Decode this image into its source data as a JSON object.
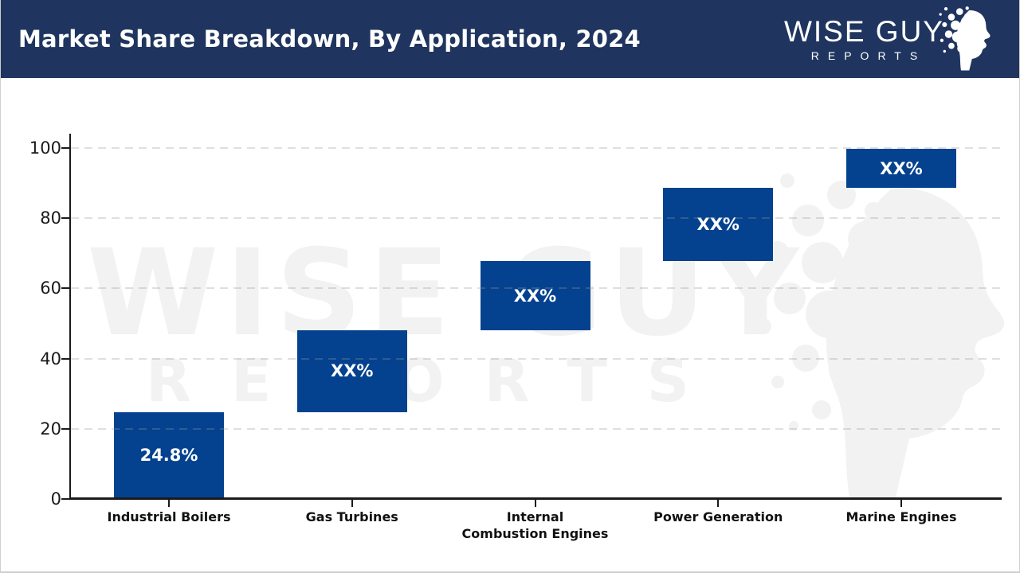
{
  "header": {
    "title": "Market Share Breakdown, By Application, 2024",
    "logo": {
      "name": "Wise Guy Reports",
      "line1": "WISE GUY",
      "line2": "REPORTS"
    }
  },
  "watermark": {
    "line1": "WISE GUY",
    "line2": "REPORTS"
  },
  "chart_data": {
    "type": "bar",
    "variant": "floating-waterfall",
    "title": "Market Share Breakdown, By Application, 2024",
    "categories": [
      "Industrial Boilers",
      "Gas Turbines",
      "Internal\nCombustion Engines",
      "Power Generation",
      "Marine Engines"
    ],
    "bars": [
      {
        "category": "Industrial Boilers",
        "start": 0,
        "end": 24.8,
        "label": "24.8%"
      },
      {
        "category": "Gas Turbines",
        "start": 24.8,
        "end": 48,
        "label": "XX%"
      },
      {
        "category": "Internal Combustion Engines",
        "start": 48,
        "end": 67.8,
        "label": "XX%"
      },
      {
        "category": "Power Generation",
        "start": 67.8,
        "end": 88.6,
        "label": "XX%"
      },
      {
        "category": "Marine Engines",
        "start": 88.6,
        "end": 99.8,
        "label": "XX%"
      }
    ],
    "xlabel": "",
    "ylabel": "",
    "ylim": [
      0,
      100
    ],
    "yticks": [
      0,
      20,
      40,
      60,
      80,
      100
    ],
    "grid": "horizontal-dashed",
    "legend": "none",
    "bar_color": "#04428F",
    "bar_label_color": "#FFFFFF"
  },
  "colors": {
    "header_bg": "#1F355F",
    "header_text": "#FFFFFF",
    "bar": "#04428F",
    "axis": "#1A1A1A",
    "gridline": "#E0E0E0",
    "watermark": "#F2F2F2",
    "frame_border": "#CFCFCF"
  }
}
